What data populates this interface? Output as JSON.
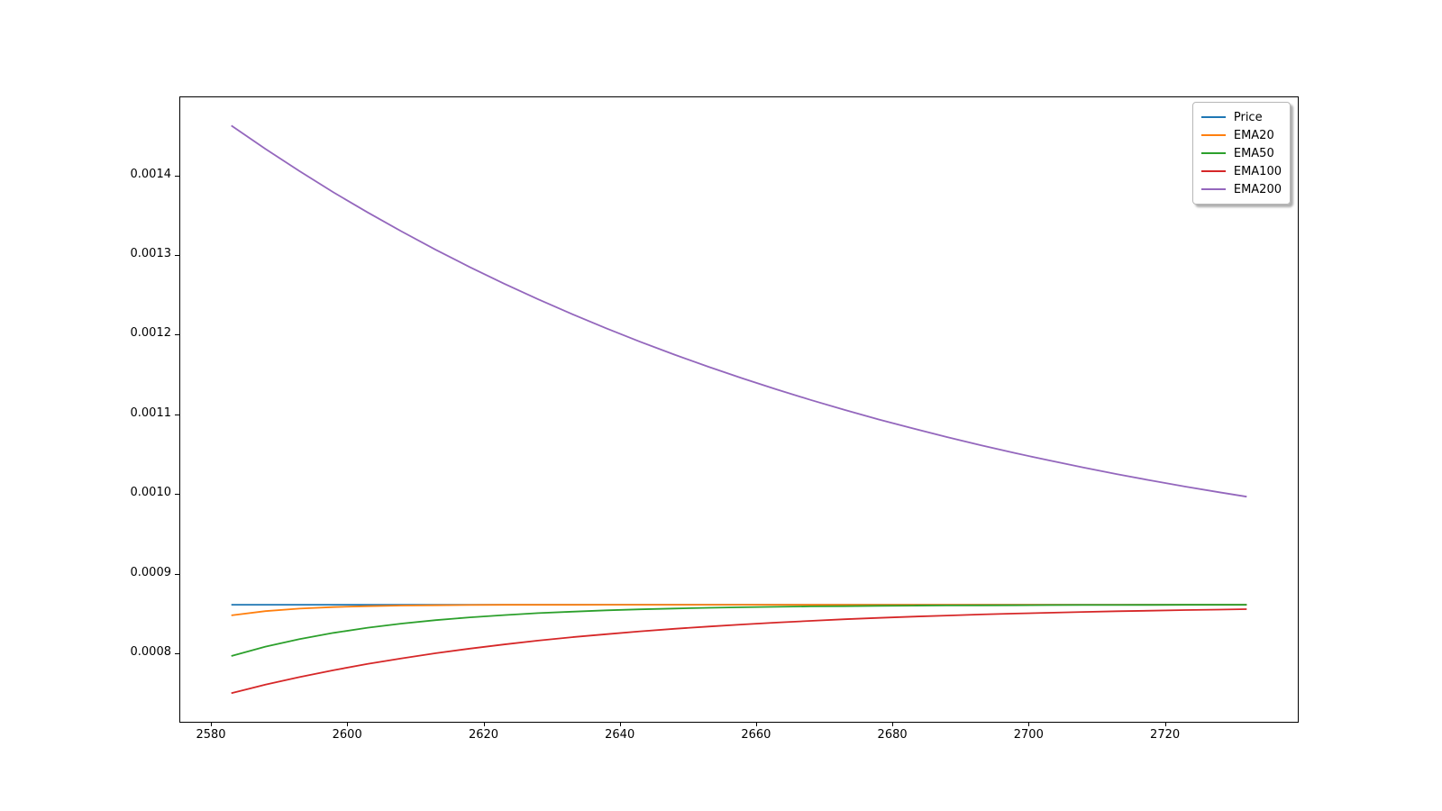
{
  "figure": {
    "background_color": "#ffffff",
    "plot_border_color": "#000000"
  },
  "chart_data": {
    "type": "line",
    "title": "",
    "xlabel": "",
    "ylabel": "",
    "grid": false,
    "legend_position": "upper right",
    "xlim": [
      2575.5,
      2739.5
    ],
    "ylim": [
      0.000714,
      0.001498
    ],
    "xticks": [
      2580,
      2600,
      2620,
      2640,
      2660,
      2680,
      2700,
      2720
    ],
    "yticks": [
      0.0008,
      0.0009,
      0.001,
      0.0011,
      0.0012,
      0.0013,
      0.0014
    ],
    "x": [
      2583,
      2588,
      2593,
      2598,
      2603,
      2608,
      2613,
      2618,
      2623,
      2628,
      2633,
      2638,
      2643,
      2648,
      2653,
      2658,
      2663,
      2668,
      2673,
      2678,
      2683,
      2688,
      2693,
      2698,
      2703,
      2708,
      2713,
      2718,
      2723,
      2728,
      2732
    ],
    "series": [
      {
        "name": "Price",
        "color": "#1f77b4",
        "values": [
          0.000861,
          0.000861,
          0.000861,
          0.000861,
          0.000861,
          0.000861,
          0.000861,
          0.000861,
          0.000861,
          0.000861,
          0.000861,
          0.000861,
          0.000861,
          0.000861,
          0.000861,
          0.000861,
          0.000861,
          0.000861,
          0.000861,
          0.000861,
          0.000861,
          0.000861,
          0.000861,
          0.000861,
          0.000861,
          0.000861,
          0.000861,
          0.000861,
          0.000861,
          0.000861,
          0.000861
        ]
      },
      {
        "name": "EMA20",
        "color": "#ff7f0e",
        "values": [
          0.0008476,
          0.0008529,
          0.0008561,
          0.000858,
          0.0008592,
          0.0008599,
          0.0008603,
          0.0008606,
          0.0008608,
          0.0008609,
          0.0008609,
          0.000861,
          0.000861,
          0.000861,
          0.000861,
          0.000861,
          0.000861,
          0.000861,
          0.000861,
          0.000861,
          0.000861,
          0.000861,
          0.000861,
          0.000861,
          0.000861,
          0.000861,
          0.000861,
          0.000861,
          0.000861,
          0.000861,
          0.000861
        ]
      },
      {
        "name": "EMA50",
        "color": "#2ca02c",
        "values": [
          0.0007966,
          0.0008083,
          0.0008178,
          0.0008257,
          0.0008321,
          0.0008373,
          0.0008416,
          0.0008451,
          0.000848,
          0.0008504,
          0.0008523,
          0.0008539,
          0.0008552,
          0.0008562,
          0.0008571,
          0.0008578,
          0.0008584,
          0.0008589,
          0.0008592,
          0.0008596,
          0.0008598,
          0.00086,
          0.0008602,
          0.0008603,
          0.0008605,
          0.0008606,
          0.0008606,
          0.0008607,
          0.0008608,
          0.0008608,
          0.0008608
        ]
      },
      {
        "name": "EMA100",
        "color": "#d62728",
        "values": [
          0.00075,
          0.0007606,
          0.0007701,
          0.0007788,
          0.0007866,
          0.0007937,
          0.0008001,
          0.0008059,
          0.0008111,
          0.0008159,
          0.0008202,
          0.000824,
          0.0008276,
          0.0008308,
          0.0008336,
          0.0008362,
          0.0008386,
          0.0008407,
          0.0008427,
          0.0008444,
          0.000846,
          0.0008474,
          0.0008487,
          0.0008499,
          0.0008509,
          0.0008519,
          0.0008528,
          0.0008535,
          0.0008543,
          0.0008549,
          0.0008554
        ]
      },
      {
        "name": "EMA200",
        "color": "#9467bd",
        "values": [
          0.0014625,
          0.0014332,
          0.0014053,
          0.0013787,
          0.0013535,
          0.0013295,
          0.0013066,
          0.0012849,
          0.0012642,
          0.0012445,
          0.0012258,
          0.001208,
          0.0011911,
          0.001175,
          0.0011597,
          0.0011451,
          0.0011313,
          0.0011181,
          0.0011056,
          0.0010936,
          0.0010823,
          0.0010715,
          0.0010612,
          0.0010514,
          0.0010422,
          0.0010333,
          0.0010249,
          0.0010169,
          0.0010093,
          0.0010021,
          0.0009966
        ]
      }
    ]
  }
}
